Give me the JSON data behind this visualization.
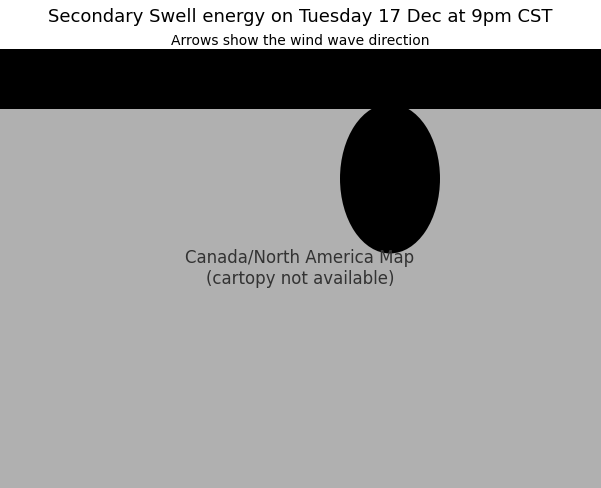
{
  "title": "Secondary Swell energy on Tuesday 17 Dec at 9pm CST",
  "subtitle": "Arrows show the wind wave direction",
  "title_fontsize": 13,
  "subtitle_fontsize": 10,
  "bg_color": "#ffffff",
  "map_bg": "#aaaaaa",
  "water_color": "#000000",
  "land_color": "#b0b0b0",
  "highlight_color": "#00ffff",
  "figsize": [
    6.01,
    4.88
  ],
  "dpi": 100
}
